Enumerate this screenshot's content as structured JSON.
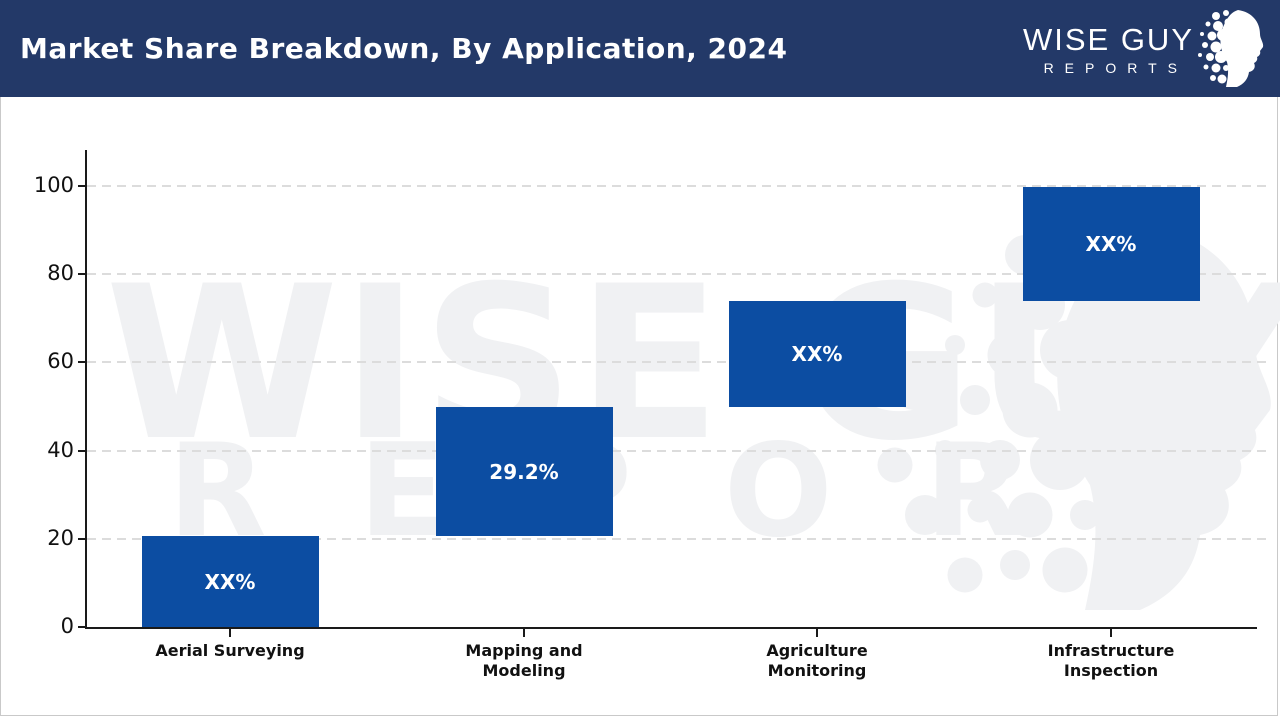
{
  "header": {
    "title": "Market Share Breakdown, By Application, 2024",
    "logo": {
      "line1": "WISE GUY",
      "line2": "REPORTS"
    }
  },
  "watermark": {
    "line1": "WISE GUY",
    "line2": "REPORTS"
  },
  "colors": {
    "header_bg": "#233968",
    "bar": "#0c4da2",
    "grid": "#dcdcdc",
    "axis": "#1a1a1a",
    "watermark": "#f0f1f3",
    "bar_label_text": "#ffffff",
    "frame_border": "#c9c9c9"
  },
  "chart_data": {
    "type": "bar",
    "subtype": "waterfall-floating-bars",
    "title": "Market Share Breakdown, By Application, 2024",
    "xlabel": "",
    "ylabel": "",
    "categories": [
      "Aerial Surveying",
      "Mapping and Modeling",
      "Agriculture Monitoring",
      "Infrastructure Inspection"
    ],
    "category_label_lines": [
      [
        "Aerial Surveying"
      ],
      [
        "Mapping and",
        "Modeling"
      ],
      [
        "Agriculture",
        "Monitoring"
      ],
      [
        "Infrastructure",
        "Inspection"
      ]
    ],
    "segments": [
      {
        "category": "Aerial Surveying",
        "start": 0,
        "end": 20.6,
        "height": 20.6,
        "label": "XX%"
      },
      {
        "category": "Mapping and Modeling",
        "start": 20.6,
        "end": 49.8,
        "height": 29.2,
        "label": "29.2%"
      },
      {
        "category": "Agriculture Monitoring",
        "start": 49.8,
        "end": 74.0,
        "height": 24.2,
        "label": "XX%"
      },
      {
        "category": "Infrastructure Inspection",
        "start": 74.0,
        "end": 99.8,
        "height": 25.8,
        "label": "XX%"
      }
    ],
    "yticks": [
      0,
      20,
      40,
      60,
      80,
      100
    ],
    "ylim": [
      0,
      105
    ],
    "grid": "horizontal-dashed",
    "legend": "none",
    "bar_color": "#0c4da2"
  }
}
